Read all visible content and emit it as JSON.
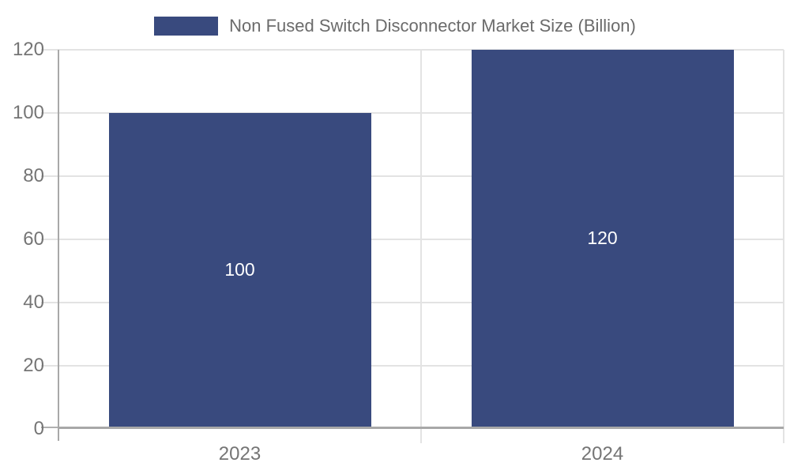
{
  "legend": {
    "label": "Non Fused Switch Disconnector Market Size (Billion)"
  },
  "colors": {
    "bar": "#394A7E",
    "grid": "#e3e3e3",
    "axis": "#a8a8a8",
    "tick_label": "#757575",
    "legend_label": "#6b6b6b",
    "value_label": "#ffffff",
    "background": "#ffffff"
  },
  "chart_data": {
    "type": "bar",
    "title": "Non Fused Switch Disconnector Market Size (Billion)",
    "categories": [
      "2023",
      "2024"
    ],
    "series": [
      {
        "name": "Non Fused Switch Disconnector Market Size (Billion)",
        "values": [
          100,
          120
        ]
      }
    ],
    "bar_value_labels": [
      "100",
      "120"
    ],
    "xlabel": "",
    "ylabel": "",
    "ylim": [
      0,
      120
    ],
    "yticks": [
      0,
      20,
      40,
      60,
      80,
      100,
      120
    ],
    "grid": true,
    "legend_position": "top-center",
    "bar_color": "#394A7E",
    "value_label_color": "#ffffff"
  }
}
